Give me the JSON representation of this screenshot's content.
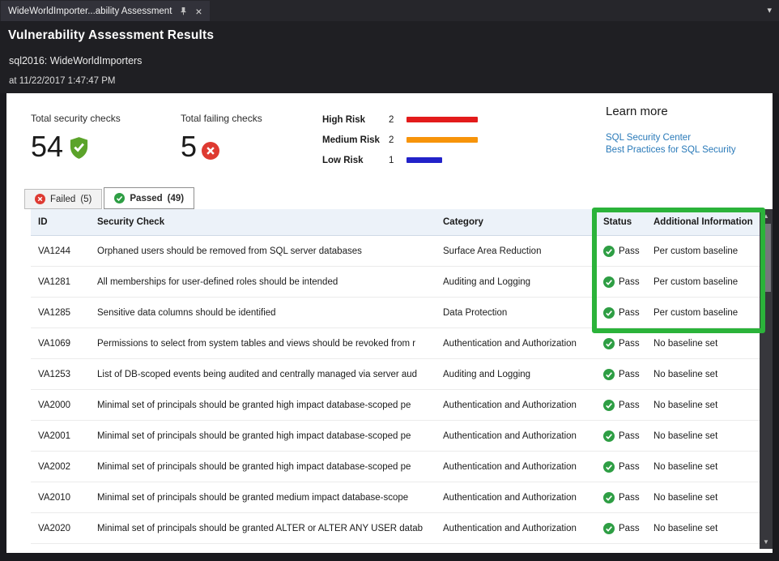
{
  "colors": {
    "pass_green": "#2e9e44",
    "fail_red": "#de3a31",
    "shield_green": "#5ba32a",
    "link_blue": "#2a7ab9",
    "annotation_green": "#2bb33a"
  },
  "titlebar": {
    "tab_title": "WideWorldImporter...ability Assessment",
    "close_glyph": "×",
    "dropdown_glyph": "▾"
  },
  "header": {
    "title": "Vulnerability Assessment Results",
    "server": "sql2016:",
    "database": "WideWorldImporters",
    "timestamp": "at 11/22/2017 1:47:47 PM"
  },
  "summary": {
    "total_label": "Total security checks",
    "total_value": "54",
    "failing_label": "Total failing checks",
    "failing_value": "5",
    "risks": [
      {
        "label": "High Risk",
        "value": 2,
        "color": "#e31b1b"
      },
      {
        "label": "Medium Risk",
        "value": 2,
        "color": "#f7940a"
      },
      {
        "label": "Low Risk",
        "value": 1,
        "color": "#2222c9"
      }
    ],
    "learn_more_title": "Learn more",
    "links": [
      {
        "label": "SQL Security Center"
      },
      {
        "label": "Best Practices for SQL Security"
      }
    ]
  },
  "tabs": [
    {
      "label": "Failed",
      "count": "(5)",
      "active": false
    },
    {
      "label": "Passed",
      "count": "(49)",
      "active": true
    }
  ],
  "table": {
    "columns": [
      "ID",
      "Security Check",
      "Category",
      "Status",
      "Additional Information"
    ],
    "rows": [
      {
        "id": "VA1244",
        "check": "Orphaned users should be removed from SQL server databases",
        "category": "Surface Area Reduction",
        "status": "Pass",
        "info": "Per custom baseline"
      },
      {
        "id": "VA1281",
        "check": "All memberships for user-defined roles should be intended",
        "category": "Auditing and Logging",
        "status": "Pass",
        "info": "Per custom baseline"
      },
      {
        "id": "VA1285",
        "check": "Sensitive data columns should be identified",
        "category": "Data Protection",
        "status": "Pass",
        "info": "Per custom baseline"
      },
      {
        "id": "VA1069",
        "check": "Permissions to select from system tables and views should be revoked from r",
        "category": "Authentication and Authorization",
        "status": "Pass",
        "info": "No baseline set"
      },
      {
        "id": "VA1253",
        "check": "List of DB-scoped events being audited and centrally managed via server aud",
        "category": "Auditing and Logging",
        "status": "Pass",
        "info": "No baseline set"
      },
      {
        "id": "VA2000",
        "check": "Minimal set of principals should be granted high impact database-scoped pe",
        "category": "Authentication and Authorization",
        "status": "Pass",
        "info": "No baseline set"
      },
      {
        "id": "VA2001",
        "check": "Minimal set of principals should be granted high impact database-scoped pe",
        "category": "Authentication and Authorization",
        "status": "Pass",
        "info": "No baseline set"
      },
      {
        "id": "VA2002",
        "check": "Minimal set of principals should be granted high impact database-scoped pe",
        "category": "Authentication and Authorization",
        "status": "Pass",
        "info": "No baseline set"
      },
      {
        "id": "VA2010",
        "check": "Minimal set of principals should be granted medium impact database-scope",
        "category": "Authentication and Authorization",
        "status": "Pass",
        "info": "No baseline set"
      },
      {
        "id": "VA2020",
        "check": "Minimal set of principals should be granted ALTER or ALTER ANY USER datab",
        "category": "Authentication and Authorization",
        "status": "Pass",
        "info": "No baseline set"
      }
    ]
  },
  "scrollbar": {
    "up_glyph": "▲",
    "down_glyph": "▼"
  }
}
